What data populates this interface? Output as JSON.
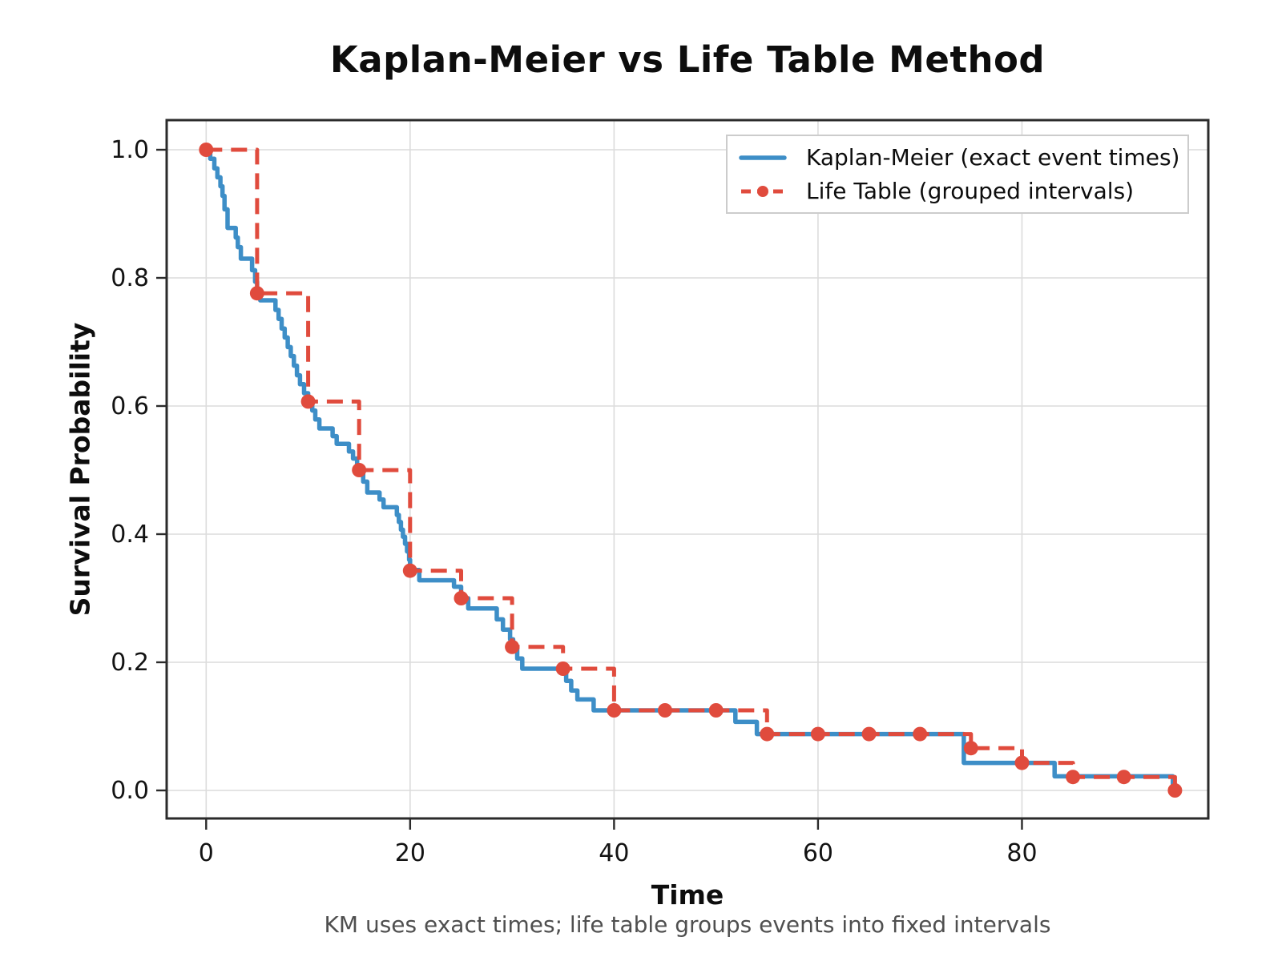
{
  "title": "Kaplan-Meier vs Life Table Method",
  "axes": {
    "xlabel": "Time",
    "ylabel": "Survival Probability",
    "x_tick_labels": [
      "0",
      "20",
      "40",
      "60",
      "80"
    ],
    "y_tick_labels": [
      "0.0",
      "0.2",
      "0.4",
      "0.6",
      "0.8",
      "1.0"
    ]
  },
  "caption": "KM uses exact times; life table groups events into fixed intervals",
  "legend": {
    "items": [
      {
        "label": "Kaplan-Meier (exact event times)",
        "swatch": "km-solid-line"
      },
      {
        "label": "Life Table (grouped intervals)",
        "swatch": "lifetable-dashed-line-with-dot"
      }
    ]
  },
  "colors": {
    "km": "#3d8ec7",
    "life_table": "#e04b3d",
    "grid": "#dcdcdc",
    "frame": "#2b2b2b",
    "caption": "#4f4f4f",
    "legend_border": "#cccccc"
  },
  "chart_data": {
    "type": "line",
    "subtype": "step-survival-curves",
    "title": "Kaplan-Meier vs Life Table Method",
    "xlabel": "Time",
    "ylabel": "Survival Probability",
    "xlim": [
      -3.9,
      98.2
    ],
    "ylim": [
      -0.045,
      1.046
    ],
    "x_ticks": [
      0,
      20,
      40,
      60,
      80
    ],
    "y_ticks": [
      0.0,
      0.2,
      0.4,
      0.6,
      0.8,
      1.0
    ],
    "grid": true,
    "legend_position": "upper right",
    "series": [
      {
        "name": "Kaplan-Meier (exact event times)",
        "style": "step-post-solid",
        "markers": false,
        "points": [
          [
            0,
            1.0
          ],
          [
            0.4,
            0.986
          ],
          [
            0.8,
            0.971
          ],
          [
            1.1,
            0.957
          ],
          [
            1.4,
            0.943
          ],
          [
            1.6,
            0.928
          ],
          [
            1.8,
            0.907
          ],
          [
            2.1,
            0.878
          ],
          [
            2.9,
            0.863
          ],
          [
            3.1,
            0.848
          ],
          [
            3.4,
            0.83
          ],
          [
            4.5,
            0.812
          ],
          [
            4.8,
            0.794
          ],
          [
            5.0,
            0.776
          ],
          [
            5.3,
            0.765
          ],
          [
            6.8,
            0.75
          ],
          [
            7.1,
            0.736
          ],
          [
            7.4,
            0.721
          ],
          [
            7.7,
            0.707
          ],
          [
            8.0,
            0.692
          ],
          [
            8.3,
            0.678
          ],
          [
            8.6,
            0.663
          ],
          [
            8.9,
            0.648
          ],
          [
            9.2,
            0.634
          ],
          [
            9.6,
            0.62
          ],
          [
            10.0,
            0.607
          ],
          [
            10.4,
            0.593
          ],
          [
            10.7,
            0.579
          ],
          [
            11.1,
            0.565
          ],
          [
            12.4,
            0.553
          ],
          [
            12.8,
            0.541
          ],
          [
            14.0,
            0.529
          ],
          [
            14.4,
            0.518
          ],
          [
            14.8,
            0.507
          ],
          [
            15.1,
            0.494
          ],
          [
            15.4,
            0.482
          ],
          [
            15.8,
            0.465
          ],
          [
            17.0,
            0.454
          ],
          [
            17.4,
            0.442
          ],
          [
            18.7,
            0.43
          ],
          [
            18.9,
            0.419
          ],
          [
            19.1,
            0.407
          ],
          [
            19.3,
            0.396
          ],
          [
            19.5,
            0.385
          ],
          [
            19.7,
            0.373
          ],
          [
            19.9,
            0.36
          ],
          [
            20.0,
            0.344
          ],
          [
            20.9,
            0.328
          ],
          [
            24.3,
            0.318
          ],
          [
            25.0,
            0.3
          ],
          [
            25.7,
            0.284
          ],
          [
            28.5,
            0.267
          ],
          [
            29.1,
            0.251
          ],
          [
            29.8,
            0.236
          ],
          [
            30.1,
            0.224
          ],
          [
            30.5,
            0.206
          ],
          [
            31.0,
            0.19
          ],
          [
            35.3,
            0.171
          ],
          [
            35.8,
            0.156
          ],
          [
            36.4,
            0.142
          ],
          [
            38.0,
            0.125
          ],
          [
            51.9,
            0.107
          ],
          [
            54.0,
            0.088
          ],
          [
            74.3,
            0.043
          ],
          [
            83.2,
            0.022
          ],
          [
            94.8,
            0.0
          ]
        ]
      },
      {
        "name": "Life Table (grouped intervals)",
        "style": "step-post-dashed",
        "markers": true,
        "points": [
          [
            0,
            1.0
          ],
          [
            5,
            0.776
          ],
          [
            10,
            0.607
          ],
          [
            15,
            0.5
          ],
          [
            20,
            0.343
          ],
          [
            25,
            0.3
          ],
          [
            30,
            0.224
          ],
          [
            35,
            0.19
          ],
          [
            40,
            0.125
          ],
          [
            45,
            0.125
          ],
          [
            50,
            0.125
          ],
          [
            55,
            0.088
          ],
          [
            60,
            0.088
          ],
          [
            65,
            0.088
          ],
          [
            70,
            0.088
          ],
          [
            75,
            0.066
          ],
          [
            80,
            0.043
          ],
          [
            85,
            0.021
          ],
          [
            90,
            0.021
          ],
          [
            95,
            0.0
          ]
        ]
      }
    ]
  }
}
